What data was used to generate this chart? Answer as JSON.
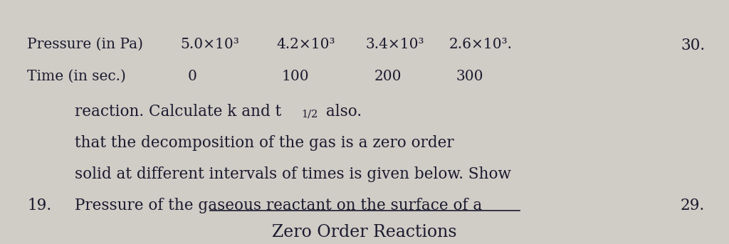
{
  "title": "Zero Order Reactions",
  "bg_color": "#d0ccc6",
  "text_color": "#1a1a2e",
  "title_fontsize": 17,
  "body_fontsize": 15.5,
  "table_fontsize": 14.5,
  "num_fontsize": 15.5,
  "number_19": "19.",
  "number_29": "29.",
  "number_30": "30.",
  "line1": "Pressure of the gaseous reactant on the surface of a",
  "line2": "solid at different intervals of times is given below. Show",
  "line3": "that the decomposition of the gas is a zero order",
  "line4_pre": "reaction. Calculate k and t",
  "line4_sub": "1/2",
  "line4_post": " also.",
  "table_row1_label": "Time (in sec.)",
  "table_row1_values": [
    "0",
    "100",
    "200",
    "300"
  ],
  "table_row2_label": "Pressure (in Pa)",
  "table_row2_values": [
    "5.0×10³",
    "4.2×10³",
    "3.4×10³",
    "2.6×10³."
  ]
}
